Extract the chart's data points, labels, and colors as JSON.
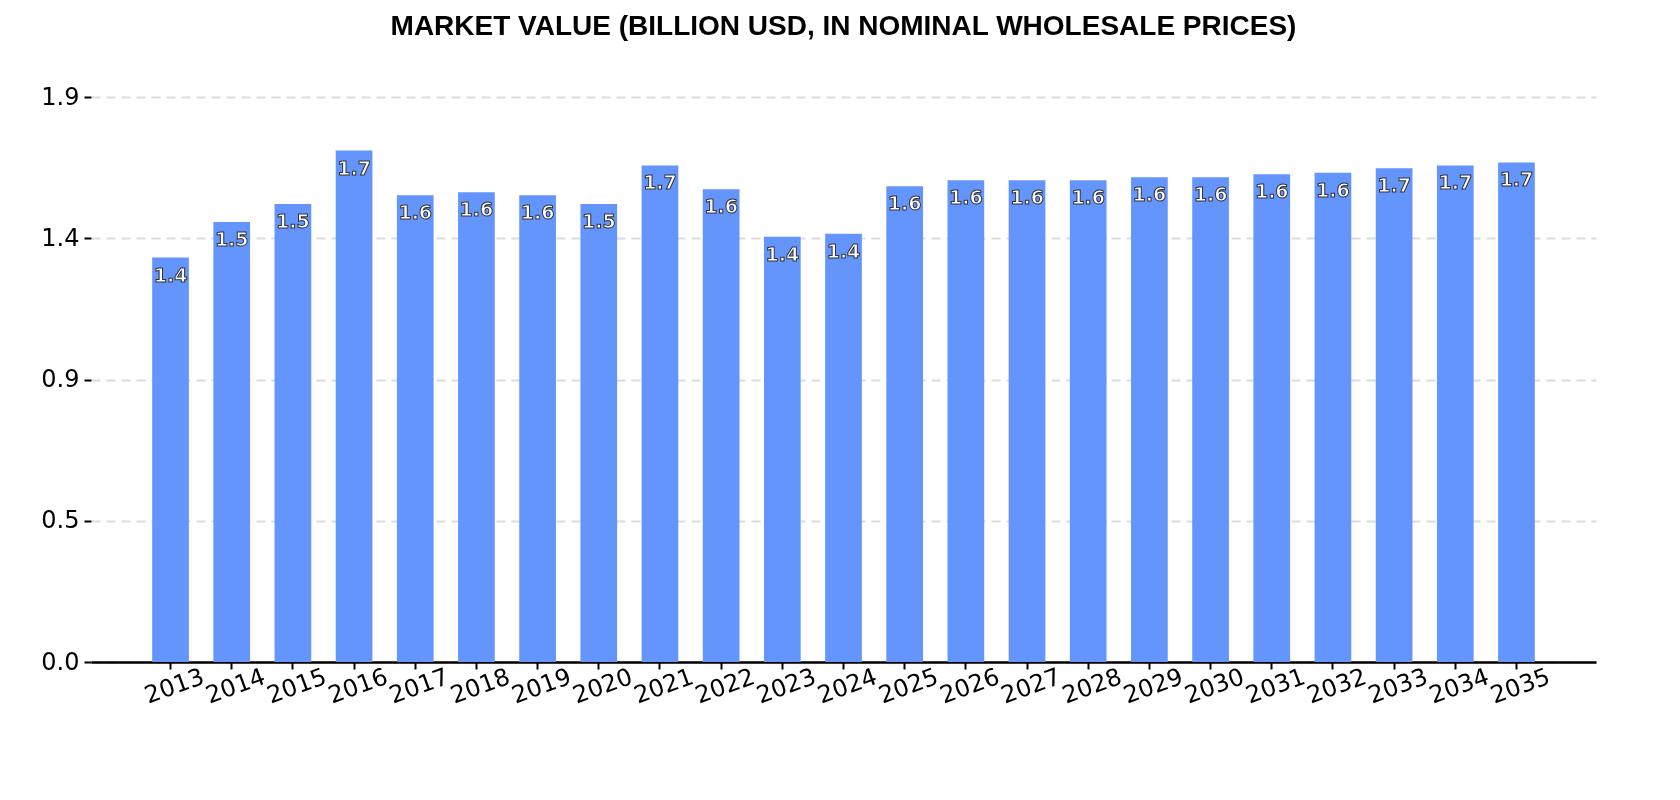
{
  "chart_data": {
    "type": "bar",
    "title": "MARKET VALUE (BILLION USD, IN NOMINAL WHOLESALE PRICES)",
    "categories": [
      "2013",
      "2014",
      "2015",
      "2016",
      "2017",
      "2018",
      "2019",
      "2020",
      "2021",
      "2022",
      "2023",
      "2024",
      "2025",
      "2026",
      "2027",
      "2028",
      "2029",
      "2030",
      "2031",
      "2032",
      "2033",
      "2034",
      "2035"
    ],
    "values": [
      1.36,
      1.48,
      1.54,
      1.72,
      1.57,
      1.58,
      1.57,
      1.54,
      1.67,
      1.59,
      1.43,
      1.44,
      1.6,
      1.62,
      1.62,
      1.62,
      1.63,
      1.63,
      1.64,
      1.645,
      1.66,
      1.67,
      1.68
    ],
    "value_labels": [
      "1.4",
      "1.5",
      "1.5",
      "1.7",
      "1.6",
      "1.6",
      "1.6",
      "1.5",
      "1.7",
      "1.6",
      "1.4",
      "1.4",
      "1.6",
      "1.6",
      "1.6",
      "1.6",
      "1.6",
      "1.6",
      "1.6",
      "1.6",
      "1.7",
      "1.7",
      "1.7"
    ],
    "color": "#6495fd",
    "ylim": [
      0,
      1.9
    ],
    "yticks": [
      {
        "value": 0,
        "label": "0.0"
      },
      {
        "value": 0.475,
        "label": "0.5"
      },
      {
        "value": 0.95,
        "label": "0.9"
      },
      {
        "value": 1.425,
        "label": "1.4"
      },
      1.9
    ],
    "grid": "y"
  }
}
